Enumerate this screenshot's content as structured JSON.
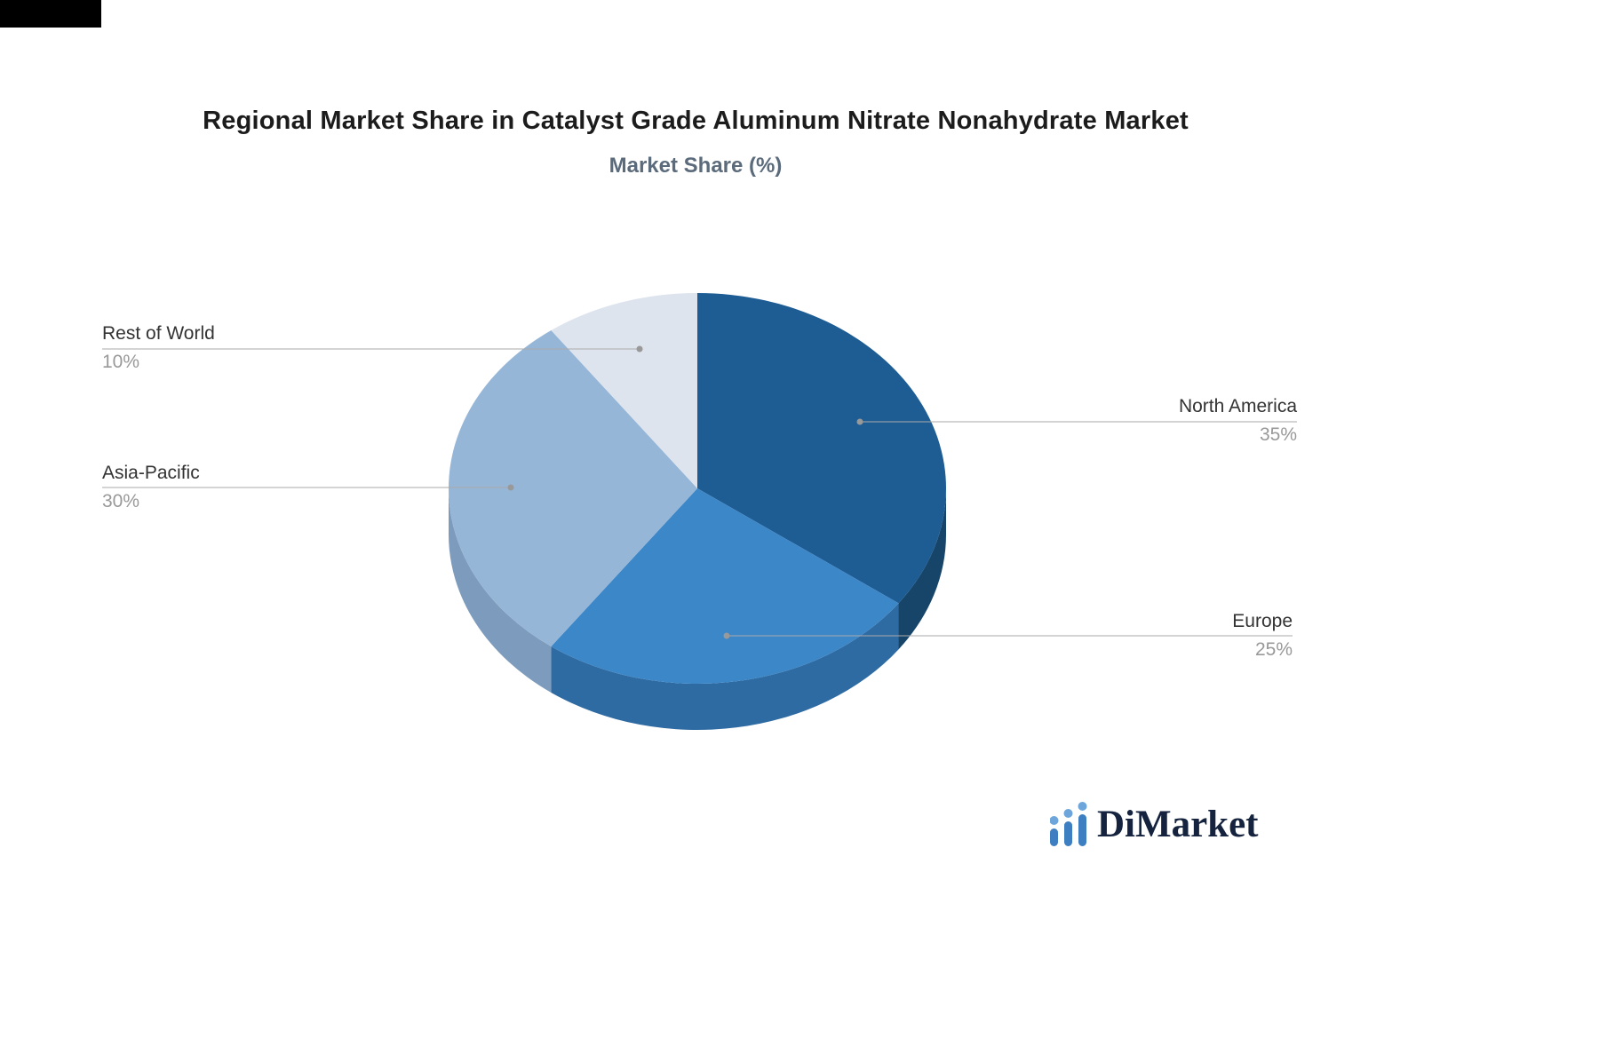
{
  "page": {
    "title": "Regional Market Share in Catalyst Grade Aluminum Nitrate Nonahydrate Market",
    "subtitle": "Market Share (%)"
  },
  "branding": {
    "logo_text": "DiMarket",
    "logo_icon": "bar-chart-dots-icon",
    "logo_text_color": "#15233f",
    "logo_icon_color": "#3d7fc1"
  },
  "chart_data": {
    "type": "pie",
    "style": "3d",
    "title": "Regional Market Share in Catalyst Grade Aluminum Nitrate Nonahydrate Market",
    "subtitle": "Market Share (%)",
    "unit": "%",
    "start_angle": "top",
    "direction": "clockwise",
    "legend_position": "callout-labels",
    "slices": [
      {
        "name": "North America",
        "value": 35,
        "pct_label": "35%",
        "color": "#1e5c94",
        "side_color": "#164569"
      },
      {
        "name": "Europe",
        "value": 25,
        "pct_label": "25%",
        "color": "#3c87c8",
        "side_color": "#2f6ba3"
      },
      {
        "name": "Asia-Pacific",
        "value": 30,
        "pct_label": "30%",
        "color": "#96b6d8",
        "side_color": "#7d9cbd"
      },
      {
        "name": "Rest of World",
        "value": 10,
        "pct_label": "10%",
        "color": "#dde4ee",
        "side_color": "#bcc7d6"
      }
    ],
    "label_text_color": "#333333",
    "pct_text_color": "#999999",
    "leader_line_color": "#aaaaaa"
  }
}
